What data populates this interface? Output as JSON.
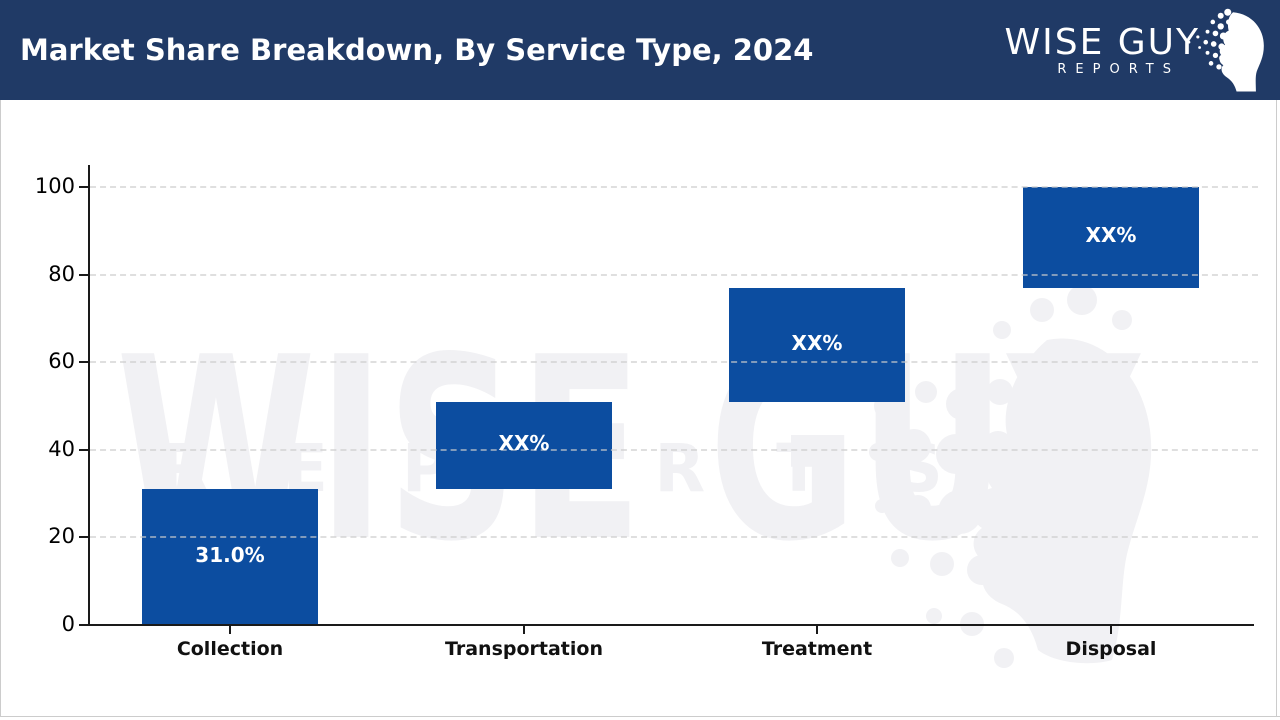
{
  "header": {
    "title": "Market Share Breakdown, By Service Type, 2024",
    "logo": {
      "name_line": "WISE GUY",
      "sub_line": "REPORTS"
    }
  },
  "watermark": {
    "big_text": "WISE GUY",
    "sub_text": "REPORTS"
  },
  "colors": {
    "header_bg": "#203a66",
    "bar": "#0c4da0",
    "bar_label_text": "#ffffff",
    "grid": "#dcdcdc",
    "axis": "#1a1a1a",
    "watermark": "#f1f1f4",
    "frame": "#cccccc"
  },
  "chart_data": {
    "type": "bar",
    "subtype": "waterfall",
    "title": "Market Share Breakdown, By Service Type, 2024",
    "categories": [
      "Collection",
      "Transportation",
      "Treatment",
      "Disposal"
    ],
    "segments": [
      {
        "category": "Collection",
        "start": 0,
        "end": 31,
        "label": "31.0%"
      },
      {
        "category": "Transportation",
        "start": 31,
        "end": 51,
        "label": "XX%"
      },
      {
        "category": "Treatment",
        "start": 51,
        "end": 77,
        "label": "XX%"
      },
      {
        "category": "Disposal",
        "start": 77,
        "end": 100,
        "label": "XX%"
      }
    ],
    "yticks": [
      0,
      20,
      40,
      60,
      80,
      100
    ],
    "ylim": [
      0,
      100
    ],
    "xlabel": "",
    "ylabel": "",
    "grid": "horizontal-dashed",
    "legend": false
  }
}
